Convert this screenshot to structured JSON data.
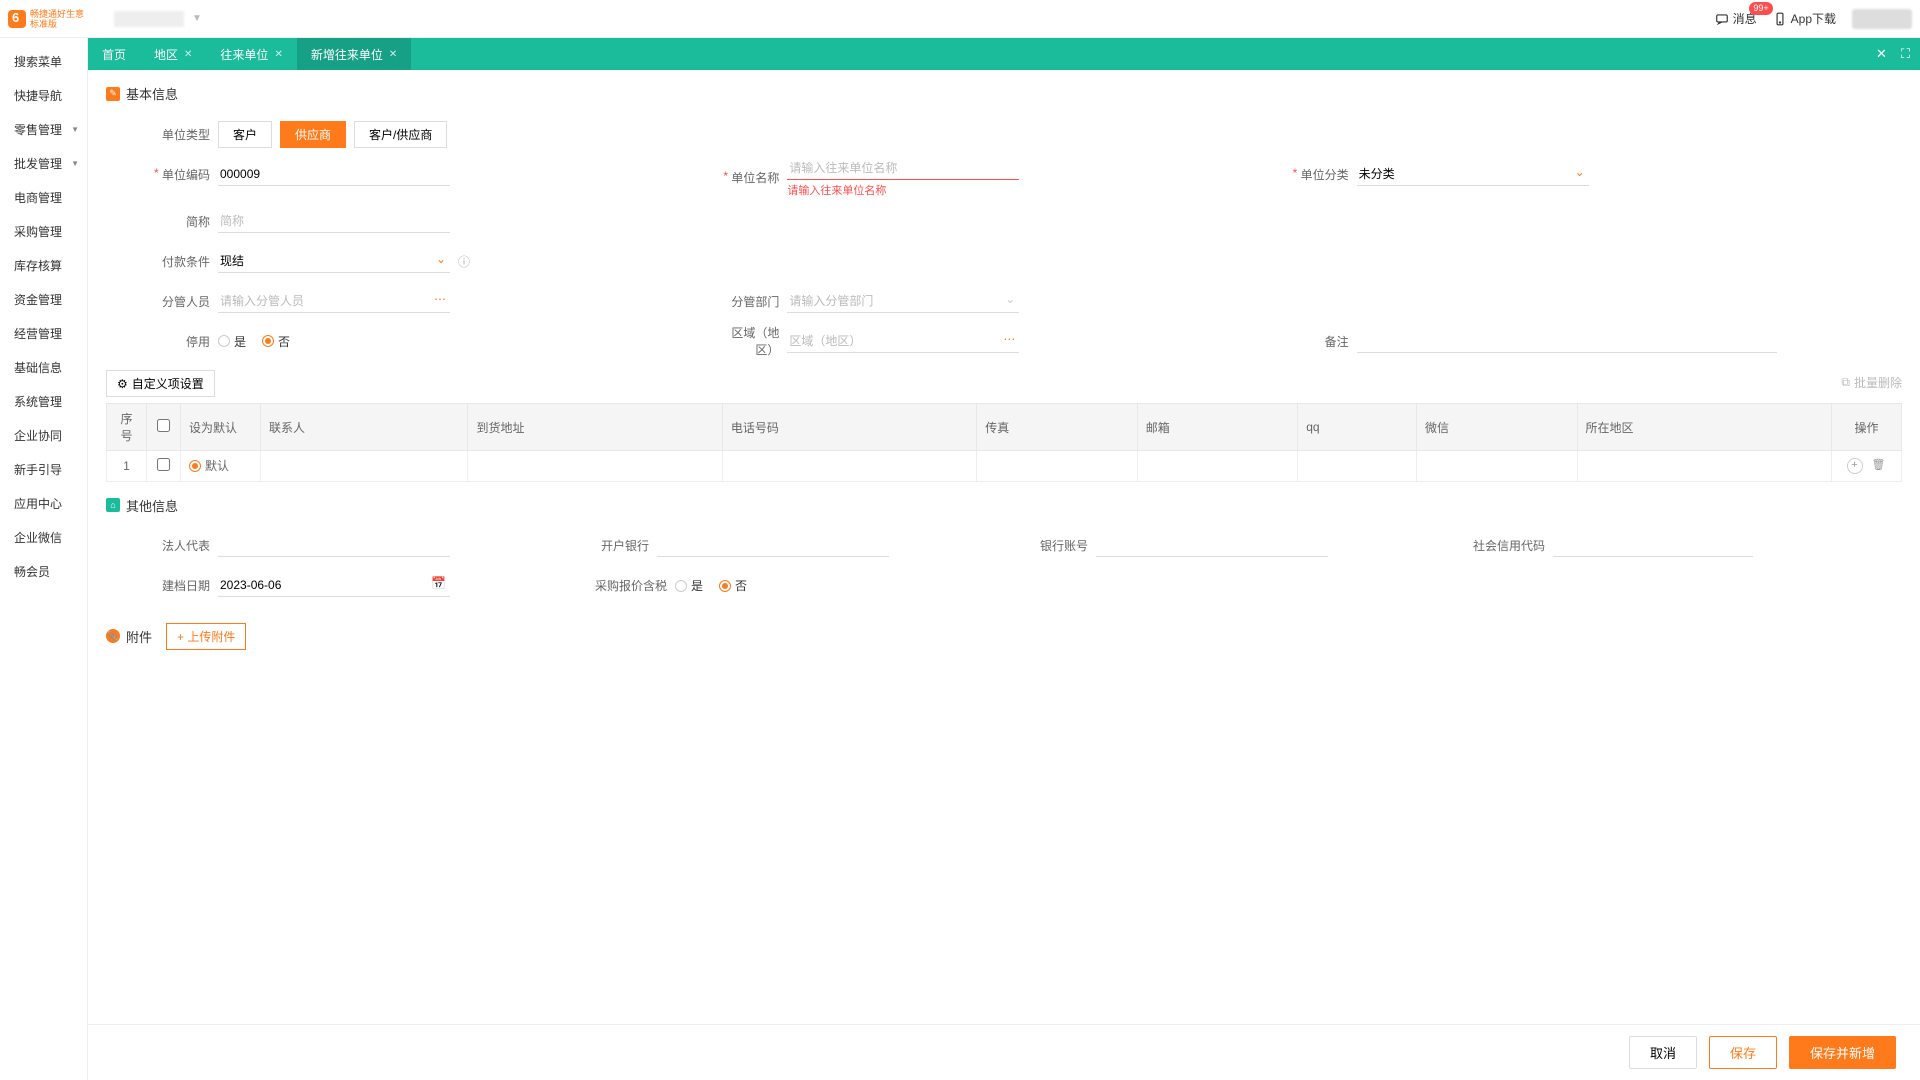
{
  "colors": {
    "primary": "#1abc9c",
    "accent": "#ff7a1a",
    "danger": "#ff4d4f",
    "border": "#e8e8e8"
  },
  "header": {
    "logo_sub1": "畅捷通好生意",
    "logo_sub2": "标准版",
    "messages_label": "消息",
    "messages_badge": "99+",
    "app_download": "App下载"
  },
  "sidebar": {
    "items": [
      {
        "label": "搜索菜单",
        "caret": false
      },
      {
        "label": "快捷导航",
        "caret": false
      },
      {
        "label": "零售管理",
        "caret": true
      },
      {
        "label": "批发管理",
        "caret": true
      },
      {
        "label": "电商管理",
        "caret": false
      },
      {
        "label": "采购管理",
        "caret": false
      },
      {
        "label": "库存核算",
        "caret": false
      },
      {
        "label": "资金管理",
        "caret": false
      },
      {
        "label": "经营管理",
        "caret": false
      },
      {
        "label": "基础信息",
        "caret": false
      },
      {
        "label": "系统管理",
        "caret": false
      },
      {
        "label": "企业协同",
        "caret": false
      },
      {
        "label": "新手引导",
        "caret": false
      },
      {
        "label": "应用中心",
        "caret": false
      },
      {
        "label": "企业微信",
        "caret": false
      },
      {
        "label": "畅会员",
        "caret": false
      }
    ]
  },
  "tabs": [
    {
      "label": "首页",
      "closable": false,
      "active": false
    },
    {
      "label": "地区",
      "closable": true,
      "active": false
    },
    {
      "label": "往来单位",
      "closable": true,
      "active": false
    },
    {
      "label": "新增往来单位",
      "closable": true,
      "active": true
    }
  ],
  "form": {
    "section_basic": "基本信息",
    "unit_type_label": "单位类型",
    "unit_type_options": [
      "客户",
      "供应商",
      "客户/供应商"
    ],
    "unit_type_selected": 1,
    "unit_code_label": "单位编码",
    "unit_code_value": "000009",
    "unit_name_label": "单位名称",
    "unit_name_placeholder": "请输入往来单位名称",
    "unit_name_error": "请输入往来单位名称",
    "unit_category_label": "单位分类",
    "unit_category_value": "未分类",
    "short_name_label": "简称",
    "short_name_placeholder": "简称",
    "pay_terms_label": "付款条件",
    "pay_terms_value": "现结",
    "manager_label": "分管人员",
    "manager_placeholder": "请输入分管人员",
    "dept_label": "分管部门",
    "dept_placeholder": "请输入分管部门",
    "disable_label": "停用",
    "yes": "是",
    "no": "否",
    "disable_value": "否",
    "region_label": "区域（地区）",
    "region_placeholder": "区域（地区）",
    "remark_label": "备注",
    "custom_fields_btn": "自定义项设置",
    "batch_delete": "批量删除",
    "section_other": "其他信息",
    "legal_label": "法人代表",
    "bank_label": "开户银行",
    "account_label": "银行账号",
    "social_code_label": "社会信用代码",
    "create_date_label": "建档日期",
    "create_date_value": "2023-06-06",
    "tax_label": "采购报价含税",
    "tax_value": "否",
    "attach_label": "附件",
    "upload_btn": "+ 上传附件"
  },
  "table": {
    "headers": [
      "序号",
      "",
      "设为默认",
      "联系人",
      "到货地址",
      "电话号码",
      "传真",
      "邮箱",
      "qq",
      "微信",
      "所在地区",
      "操作"
    ],
    "row1": {
      "idx": "1",
      "default": "默认"
    }
  },
  "footer": {
    "cancel": "取消",
    "save": "保存",
    "save_new": "保存并新增"
  }
}
